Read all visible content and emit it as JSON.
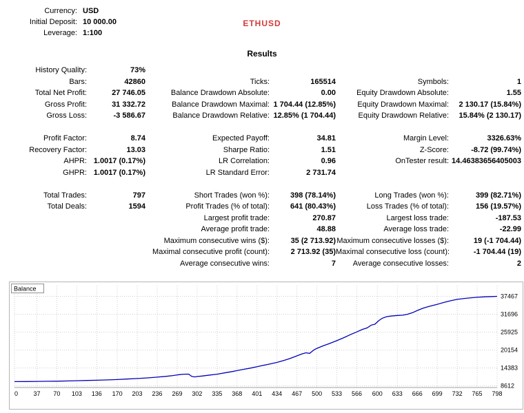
{
  "header": {
    "currency_label": "Currency:",
    "currency_value": "USD",
    "initial_deposit_label": "Initial Deposit:",
    "initial_deposit_value": "10 000.00",
    "leverage_label": "Leverage:",
    "leverage_value": "1:100",
    "symbol": "ETHUSD",
    "symbol_color": "#d23a3a",
    "results_title": "Results"
  },
  "stats": {
    "groups": [
      [
        [
          "History Quality:",
          "73%",
          "",
          "",
          "",
          ""
        ],
        [
          "Bars:",
          "42860",
          "Ticks:",
          "165514",
          "Symbols:",
          "1"
        ],
        [
          "Total Net Profit:",
          "27 746.05",
          "Balance Drawdown Absolute:",
          "0.00",
          "Equity Drawdown Absolute:",
          "1.55"
        ],
        [
          "Gross Profit:",
          "31 332.72",
          "Balance Drawdown Maximal:",
          "1 704.44 (12.85%)",
          "Equity Drawdown Maximal:",
          "2 130.17 (15.84%)"
        ],
        [
          "Gross Loss:",
          "-3 586.67",
          "Balance Drawdown Relative:",
          "12.85% (1 704.44)",
          "Equity Drawdown Relative:",
          "15.84% (2 130.17)"
        ]
      ],
      [
        [
          "Profit Factor:",
          "8.74",
          "Expected Payoff:",
          "34.81",
          "Margin Level:",
          "3326.63%"
        ],
        [
          "Recovery Factor:",
          "13.03",
          "Sharpe Ratio:",
          "1.51",
          "Z-Score:",
          "-8.72 (99.74%)"
        ],
        [
          "AHPR:",
          "1.0017 (0.17%)",
          "LR Correlation:",
          "0.96",
          "OnTester result:",
          "14.46383656405003"
        ],
        [
          "GHPR:",
          "1.0017 (0.17%)",
          "LR Standard Error:",
          "2 731.74",
          "",
          ""
        ]
      ],
      [
        [
          "Total Trades:",
          "797",
          "Short Trades (won %):",
          "398 (78.14%)",
          "Long Trades (won %):",
          "399 (82.71%)"
        ],
        [
          "Total Deals:",
          "1594",
          "Profit Trades (% of total):",
          "641 (80.43%)",
          "Loss Trades (% of total):",
          "156 (19.57%)"
        ],
        [
          "",
          "",
          "Largest profit trade:",
          "270.87",
          "Largest loss trade:",
          "-187.53"
        ],
        [
          "",
          "",
          "Average profit trade:",
          "48.88",
          "Average loss trade:",
          "-22.99"
        ],
        [
          "",
          "",
          "Maximum consecutive wins ($):",
          "35 (2 713.92)",
          "Maximum consecutive losses ($):",
          "19 (-1 704.44)"
        ],
        [
          "",
          "",
          "Maximal consecutive profit (count):",
          "2 713.92 (35)",
          "Maximal consecutive loss (count):",
          "-1 704.44 (19)"
        ],
        [
          "",
          "",
          "Average consecutive wins:",
          "7",
          "Average consecutive losses:",
          "2"
        ]
      ]
    ]
  },
  "chart_data": {
    "type": "line",
    "title": "Balance",
    "xlabel": "",
    "ylabel": "",
    "xlim": [
      0,
      798
    ],
    "ylim_display": [
      8100,
      40900
    ],
    "x_ticks": [
      0,
      37,
      70,
      103,
      136,
      170,
      203,
      236,
      269,
      302,
      335,
      368,
      401,
      434,
      467,
      500,
      533,
      566,
      600,
      633,
      666,
      699,
      732,
      765,
      798
    ],
    "y_ticks": [
      8612,
      14383,
      20154,
      25925,
      31696,
      37467
    ],
    "grid": true,
    "legend_position": "top-left",
    "line_color": "#0000b8",
    "grid_color": "#cfcfcf",
    "frame_color": "#b4b4b4",
    "series": [
      {
        "name": "Balance",
        "points": [
          [
            0,
            10000
          ],
          [
            20,
            10030
          ],
          [
            37,
            10070
          ],
          [
            55,
            10110
          ],
          [
            70,
            10150
          ],
          [
            90,
            10230
          ],
          [
            103,
            10300
          ],
          [
            120,
            10380
          ],
          [
            136,
            10460
          ],
          [
            155,
            10570
          ],
          [
            170,
            10680
          ],
          [
            185,
            10820
          ],
          [
            203,
            11000
          ],
          [
            220,
            11200
          ],
          [
            236,
            11450
          ],
          [
            250,
            11700
          ],
          [
            262,
            11950
          ],
          [
            272,
            12250
          ],
          [
            280,
            12400
          ],
          [
            288,
            12430
          ],
          [
            293,
            11700
          ],
          [
            298,
            11520
          ],
          [
            302,
            11650
          ],
          [
            310,
            11800
          ],
          [
            320,
            12050
          ],
          [
            335,
            12400
          ],
          [
            350,
            12900
          ],
          [
            360,
            13250
          ],
          [
            368,
            13550
          ],
          [
            380,
            14000
          ],
          [
            390,
            14350
          ],
          [
            401,
            14800
          ],
          [
            410,
            15200
          ],
          [
            420,
            15600
          ],
          [
            434,
            16200
          ],
          [
            445,
            16800
          ],
          [
            455,
            17400
          ],
          [
            467,
            18300
          ],
          [
            475,
            18900
          ],
          [
            482,
            19300
          ],
          [
            488,
            19100
          ],
          [
            495,
            20200
          ],
          [
            500,
            20700
          ],
          [
            510,
            21500
          ],
          [
            520,
            22200
          ],
          [
            533,
            23200
          ],
          [
            545,
            24200
          ],
          [
            555,
            25100
          ],
          [
            566,
            26000
          ],
          [
            575,
            26800
          ],
          [
            583,
            27300
          ],
          [
            590,
            28200
          ],
          [
            596,
            28500
          ],
          [
            602,
            29600
          ],
          [
            608,
            30400
          ],
          [
            615,
            30900
          ],
          [
            622,
            31100
          ],
          [
            633,
            31300
          ],
          [
            642,
            31400
          ],
          [
            650,
            31700
          ],
          [
            658,
            32200
          ],
          [
            666,
            32900
          ],
          [
            675,
            33600
          ],
          [
            685,
            34200
          ],
          [
            699,
            34900
          ],
          [
            710,
            35500
          ],
          [
            720,
            36000
          ],
          [
            732,
            36500
          ],
          [
            745,
            36800
          ],
          [
            755,
            37000
          ],
          [
            765,
            37150
          ],
          [
            778,
            37300
          ],
          [
            790,
            37400
          ],
          [
            798,
            37467
          ]
        ]
      }
    ]
  }
}
